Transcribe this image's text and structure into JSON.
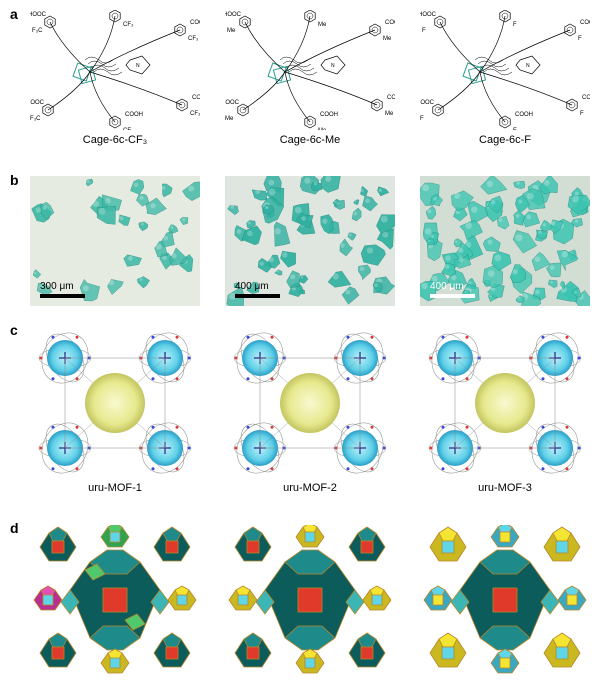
{
  "panels": {
    "a": "a",
    "b": "b",
    "c": "c",
    "d": "d"
  },
  "row_a": {
    "items": [
      {
        "name": "Cage-6c-CF₃",
        "sub": "CF₃",
        "sub2": "F₃C"
      },
      {
        "name": "Cage-6c-Me",
        "sub": "Me",
        "sub2": "Me"
      },
      {
        "name": "Cage-6c-F",
        "sub": "F",
        "sub2": "F"
      }
    ],
    "cooh": "COOH",
    "hooc": "HOOC",
    "label_fontsize": 11,
    "sub_fontsize": 6,
    "line_color": "#000000",
    "metal_color": "#2a9d8f"
  },
  "row_b": {
    "items": [
      {
        "scale": "300 μm",
        "bg": "#e6ebe2",
        "crystal_color": "#3db8a5",
        "density": 0.25,
        "bar_white": false
      },
      {
        "scale": "400 μm",
        "bg": "#dfe6df",
        "crystal_color": "#2fb0a0",
        "density": 0.55,
        "bar_white": false
      },
      {
        "scale": "400 μm",
        "bg": "#d2ddd4",
        "crystal_color": "#3cc4b0",
        "density": 0.85,
        "bar_white": true
      }
    ]
  },
  "row_c": {
    "items": [
      {
        "name": "uru-MOF-1"
      },
      {
        "name": "uru-MOF-2"
      },
      {
        "name": "uru-MOF-3"
      }
    ],
    "colors": {
      "sphere_small": "#5fd0e8",
      "sphere_small_shade": "#2a9ec8",
      "sphere_large": "#e7e98e",
      "sphere_large_shade": "#c3c560",
      "cage_line": "#888888",
      "cage_red": "#d83a3a",
      "cage_blue": "#3a4ad8",
      "cage_cross": "#222288"
    },
    "label_fontsize": 11
  },
  "row_d": {
    "colors": {
      "teal": "#1f8a8a",
      "teal_dark": "#0d5c5c",
      "teal_light": "#3cb5b5",
      "yellow": "#f5e533",
      "yellow_dark": "#c9b820",
      "red": "#e03a2a",
      "cyan": "#5fd5e8",
      "green": "#4fc96b",
      "magenta": "#e34fb5",
      "edge": "#b8872a"
    },
    "items": [
      {
        "variant": 1
      },
      {
        "variant": 2
      },
      {
        "variant": 3
      }
    ]
  }
}
